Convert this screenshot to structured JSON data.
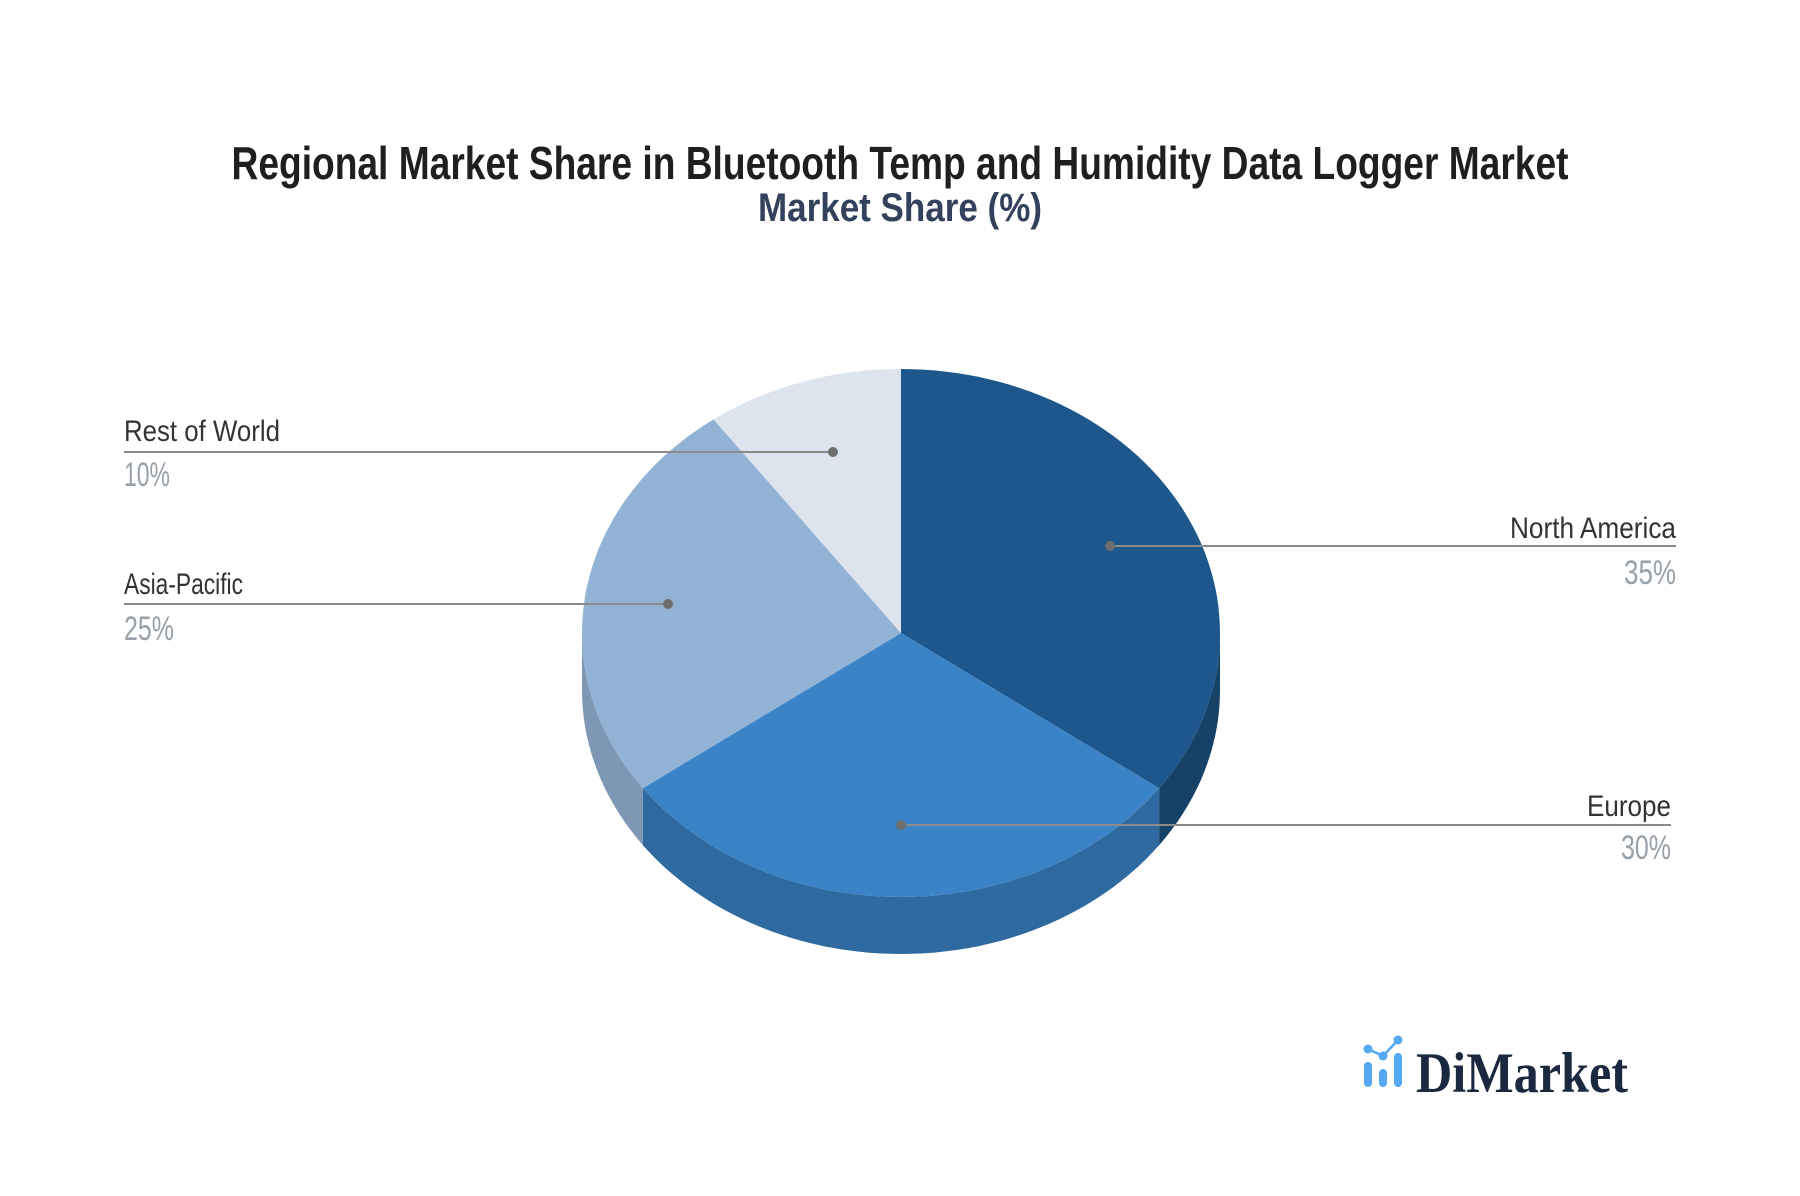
{
  "title": "Regional Market Share in Bluetooth Temp and Humidity Data Logger Market",
  "subtitle": "Market Share (%)",
  "logo": {
    "text": "DiMarket",
    "icon": "bar-line-chart-icon",
    "icon_color": "#55a8f2",
    "text_color": "#1b2940"
  },
  "palette": {
    "leader_line": "#8a8a8a",
    "leader_dot": "#6e6e6e",
    "label_text": "#333333",
    "value_text": "#98a0a8",
    "title_text": "#1f1f1f",
    "subtitle_text": "#33415c",
    "background": "#ffffff"
  },
  "chart_data": {
    "type": "pie",
    "style": "3d",
    "title": "Regional Market Share in Bluetooth Temp and Humidity Data Logger Market",
    "subtitle": "Market Share (%)",
    "unit": "%",
    "direction": "clockwise",
    "start_angle_deg": 0,
    "legend_position": "callout-labels",
    "labels": [
      "North America",
      "Europe",
      "Asia-Pacific",
      "Rest of World"
    ],
    "values": [
      35,
      30,
      25,
      10
    ],
    "display_values": [
      "35%",
      "30%",
      "25%",
      "10%"
    ],
    "colors": [
      "#1d578b",
      "#3a83c6",
      "#92b2d6",
      "#dde4ee"
    ],
    "side_colors": [
      "#174268",
      "#2e699f",
      "#7d97b4",
      "#c8d1e0"
    ]
  }
}
